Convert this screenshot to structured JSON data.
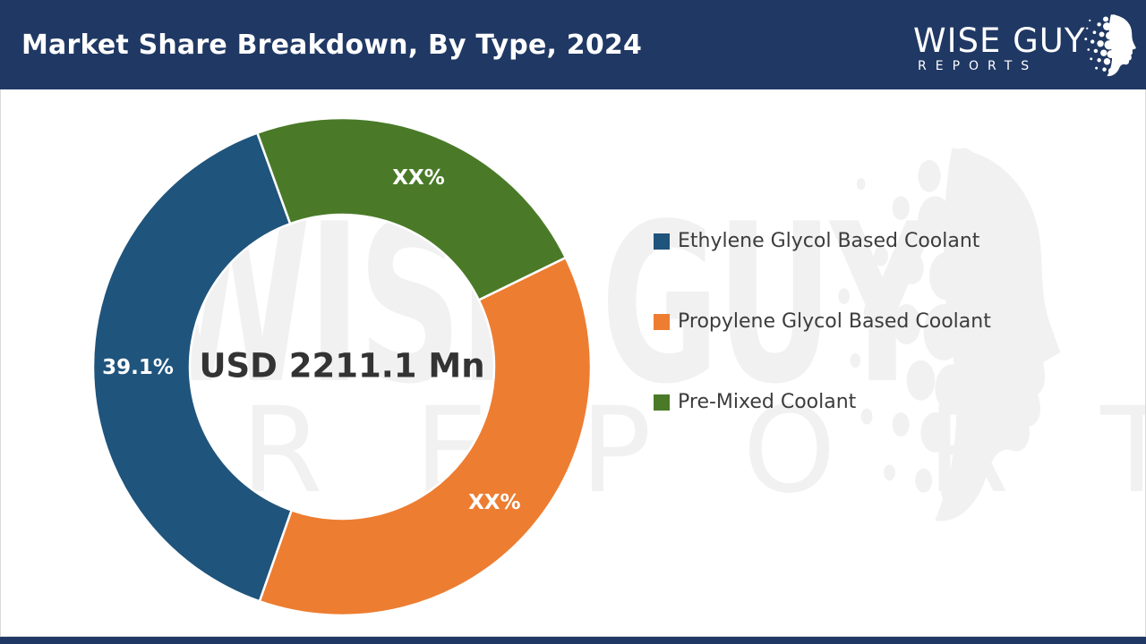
{
  "header": {
    "title": "Market Share Breakdown, By Type, 2024",
    "logo_name": "WISE GUY",
    "logo_sub": "REPORTS",
    "bg_color": "#203864"
  },
  "watermark": {
    "line1": "WISE GUY",
    "line2": "R E P O R T S"
  },
  "chart_data": {
    "type": "pie",
    "subtype": "donut",
    "title": "Market Share Breakdown, By Type, 2024",
    "center_label": "USD 2211.1 Mn",
    "legend_position": "right",
    "start_angle_deg": 109.9,
    "direction": "counterclockwise",
    "inner_radius_ratio": 0.61,
    "segments": [
      {
        "label": "Ethylene Glycol Based Coolant",
        "display_label": "39.1%",
        "value_pct": 39.1,
        "estimated": false,
        "color": "#1F547C"
      },
      {
        "label": "Propylene Glycol Based Coolant",
        "display_label": "XX%",
        "value_pct": 37.6,
        "estimated": true,
        "color": "#ED7D31"
      },
      {
        "label": "Pre-Mixed Coolant",
        "display_label": "XX%",
        "value_pct": 23.3,
        "estimated": true,
        "color": "#4A7A28"
      }
    ]
  },
  "colors": {
    "header_bg": "#203864",
    "footer_bg": "#203864",
    "center_text": "#333333",
    "legend_text": "#3C3C3C",
    "slice_label_text": "#FFFFFF",
    "watermark": "#F1F1F1",
    "content_border": "#D9D9D9"
  }
}
